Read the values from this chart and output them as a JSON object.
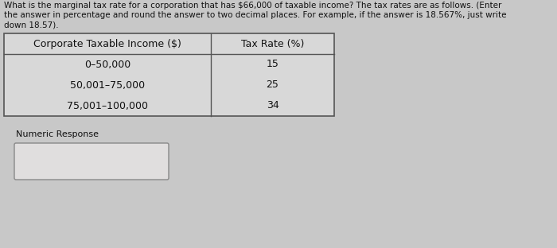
{
  "header_line1": "What is the marginal tax rate for a corporation that has $66,000 of taxable income? The tax rates are as follows. (Enter",
  "header_line2": "the answer in percentage and round the answer to two decimal places. For example, if the answer is 18.567%, just write",
  "header_line3": "down 18.57).",
  "col1_header": "Corporate Taxable Income ($)",
  "col2_header": "Tax Rate (%)",
  "rows": [
    [
      "0–50,000",
      "15"
    ],
    [
      "50,001–75,000",
      "25"
    ],
    [
      "75,001–100,000",
      "34"
    ]
  ],
  "numeric_response_label": "Numeric Response",
  "bg_color": "#c8c8c8",
  "table_bg": "#d8d8d8",
  "table_border": "#555555",
  "input_box_color": "#e0dede",
  "input_box_border": "#888888",
  "text_color": "#111111",
  "header_fontsize": 7.5,
  "table_header_fontsize": 9.0,
  "table_data_fontsize": 9.0,
  "label_fontsize": 8.0
}
